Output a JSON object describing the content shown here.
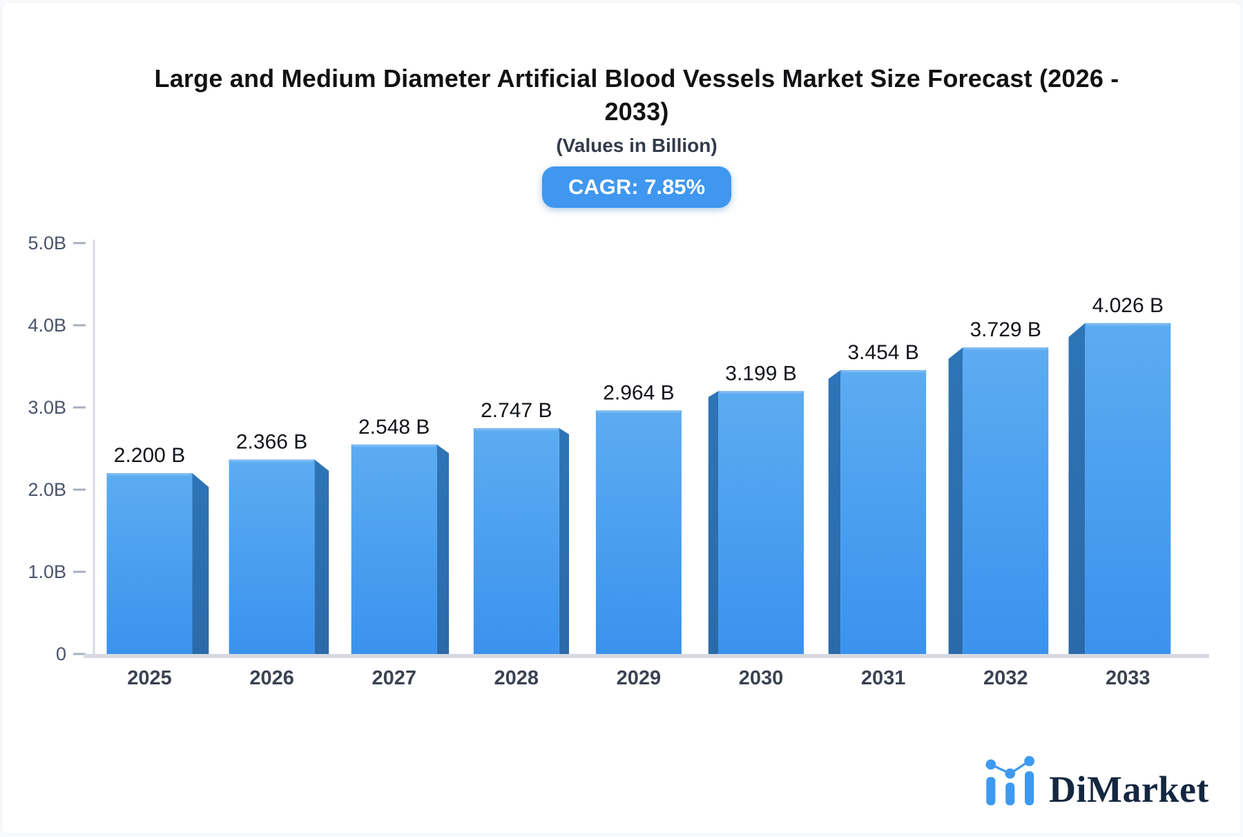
{
  "header": {
    "title_line1": "Large and Medium Diameter Artificial Blood Vessels Market Size Forecast (2026 -",
    "title_line2": "2033)",
    "subtitle": "(Values in Billion)",
    "cagr_badge": "CAGR: 7.85%",
    "badge_color": "#3F97F0"
  },
  "chart_data": {
    "type": "bar",
    "title": "Large and Medium Diameter Artificial Blood Vessels Market Size Forecast (2026 - 2033)",
    "subtitle": "(Values in Billion)",
    "cagr": "7.85%",
    "unit": "Billion",
    "categories": [
      "2025",
      "2026",
      "2027",
      "2028",
      "2029",
      "2030",
      "2031",
      "2032",
      "2033"
    ],
    "values": [
      2.2,
      2.366,
      2.548,
      2.747,
      2.964,
      3.199,
      3.454,
      3.729,
      4.026
    ],
    "value_labels": [
      "2.200 B",
      "2.366 B",
      "2.548 B",
      "2.747 B",
      "2.964 B",
      "3.199 B",
      "3.454 B",
      "3.729 B",
      "4.026 B"
    ],
    "y_ticks": [
      {
        "label": "0",
        "value": 0
      },
      {
        "label": "1.0B",
        "value": 1
      },
      {
        "label": "2.0B",
        "value": 2
      },
      {
        "label": "3.0B",
        "value": 3
      },
      {
        "label": "4.0B",
        "value": 4
      },
      {
        "label": "5.0B",
        "value": 5
      }
    ],
    "ylim": [
      0,
      5
    ],
    "grid": false,
    "legend": false,
    "effect": "3d-perspective",
    "bar_style": {
      "front_top": "#5CACF1",
      "front_bottom": "#3A92EE",
      "side": "#2E74B6",
      "side_dark": "#2B6AA9",
      "top_face": "#6FB1EF",
      "highlight": "#7DB9F4"
    },
    "axis_color": "#D6DAE0",
    "tick_color": "#A9AFB9",
    "y_label_color": "#49536A",
    "x_label_color": "#3B4252",
    "value_label_color": "#111419"
  },
  "footer": {
    "brand": "DiMarket",
    "logo_icon": "mini-bar-chart-logo",
    "icon_color": "#3D9AF0",
    "brand_color": "#152740"
  }
}
